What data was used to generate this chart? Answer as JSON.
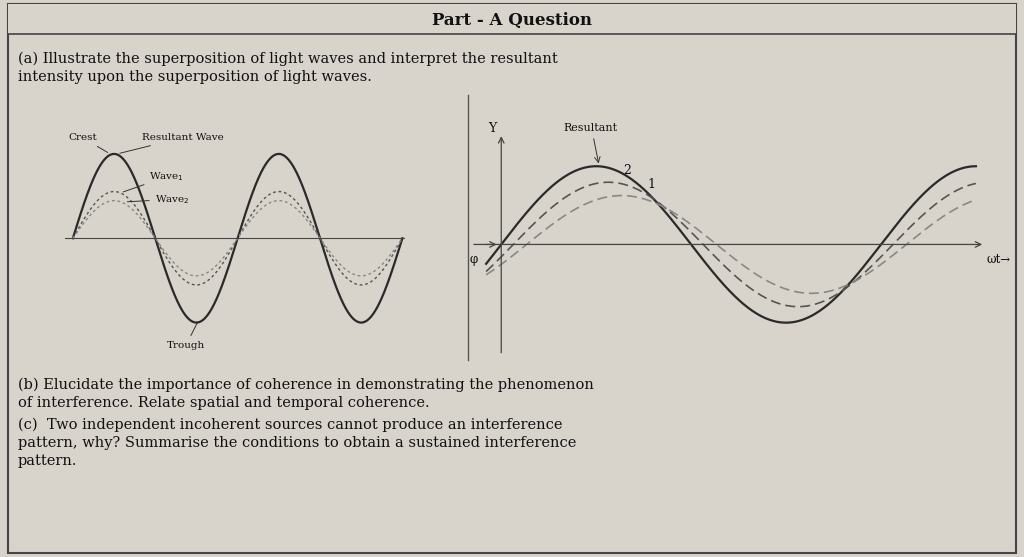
{
  "title": "Part - A Question",
  "bg_color": "#d8d4cc",
  "border_color": "#444444",
  "title_line_color": "#555555",
  "question_a_line1": "(a) Illustrate the superposition of light waves and interpret the resultant",
  "question_a_line2": "intensity upon the superposition of light waves.",
  "question_b_line1": "(b) Elucidate the importance of coherence in demonstrating the phenomenon",
  "question_b_line2": "of interference. Relate spatial and temporal coherence.",
  "question_c_line1": "(c)  Two independent incoherent sources cannot produce an interference",
  "question_c_line2": "pattern, why? Summarise the conditions to obtain a sustained interference",
  "question_c_line3": "pattern.",
  "left_crest": "Crest",
  "left_trough": "Trough",
  "left_resultant": "Resultant Wave",
  "left_wave1": "Wave",
  "left_wave2": "Wave",
  "right_resultant": "Resultant",
  "right_y": "Y",
  "right_phi": "φ",
  "right_omegat": "ωt→",
  "right_2": "2",
  "right_1": "1"
}
